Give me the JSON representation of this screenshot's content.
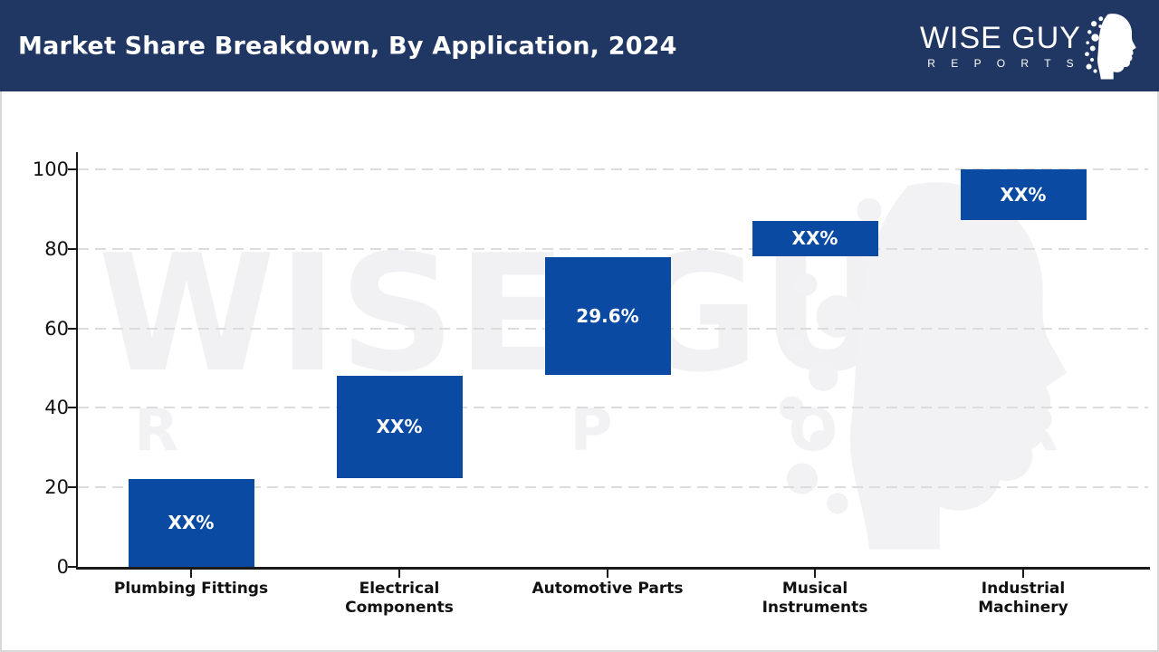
{
  "header": {
    "title": "Market Share Breakdown, By Application, 2024",
    "bg_color": "#213763",
    "logo": {
      "line1": "WISE GUY",
      "line2": "R E P O R T S"
    }
  },
  "watermark": {
    "line1": "WISE GUY",
    "line2": "R E P O R T S"
  },
  "chart_data": {
    "type": "bar",
    "subtype": "floating-waterfall",
    "title": "Market Share Breakdown, By Application, 2024",
    "categories": [
      "Plumbing Fittings",
      "Electrical\nComponents",
      "Automotive Parts",
      "Musical\nInstruments",
      "Industrial\nMachinery"
    ],
    "bars": [
      {
        "category": "Plumbing Fittings",
        "start": 0,
        "end": 22.2,
        "label": "XX%"
      },
      {
        "category": "Electrical Components",
        "start": 22.3,
        "end": 48.1,
        "label": "XX%"
      },
      {
        "category": "Automotive Parts",
        "start": 48.3,
        "end": 77.9,
        "label": "29.6%"
      },
      {
        "category": "Musical Instruments",
        "start": 78.2,
        "end": 87.1,
        "label": "XX%"
      },
      {
        "category": "Industrial Machinery",
        "start": 87.3,
        "end": 100,
        "label": "XX%"
      }
    ],
    "yticks": [
      0,
      20,
      40,
      60,
      80,
      100
    ],
    "ylim": [
      0,
      107
    ],
    "xlabel": "",
    "ylabel": "",
    "grid": "horizontal-dashed",
    "legend": "none",
    "bar_color": "#0a4aa3",
    "bar_label_color": "#ffffff",
    "axis_color": "#1a1a1a",
    "grid_color": "#dcdcdc"
  }
}
